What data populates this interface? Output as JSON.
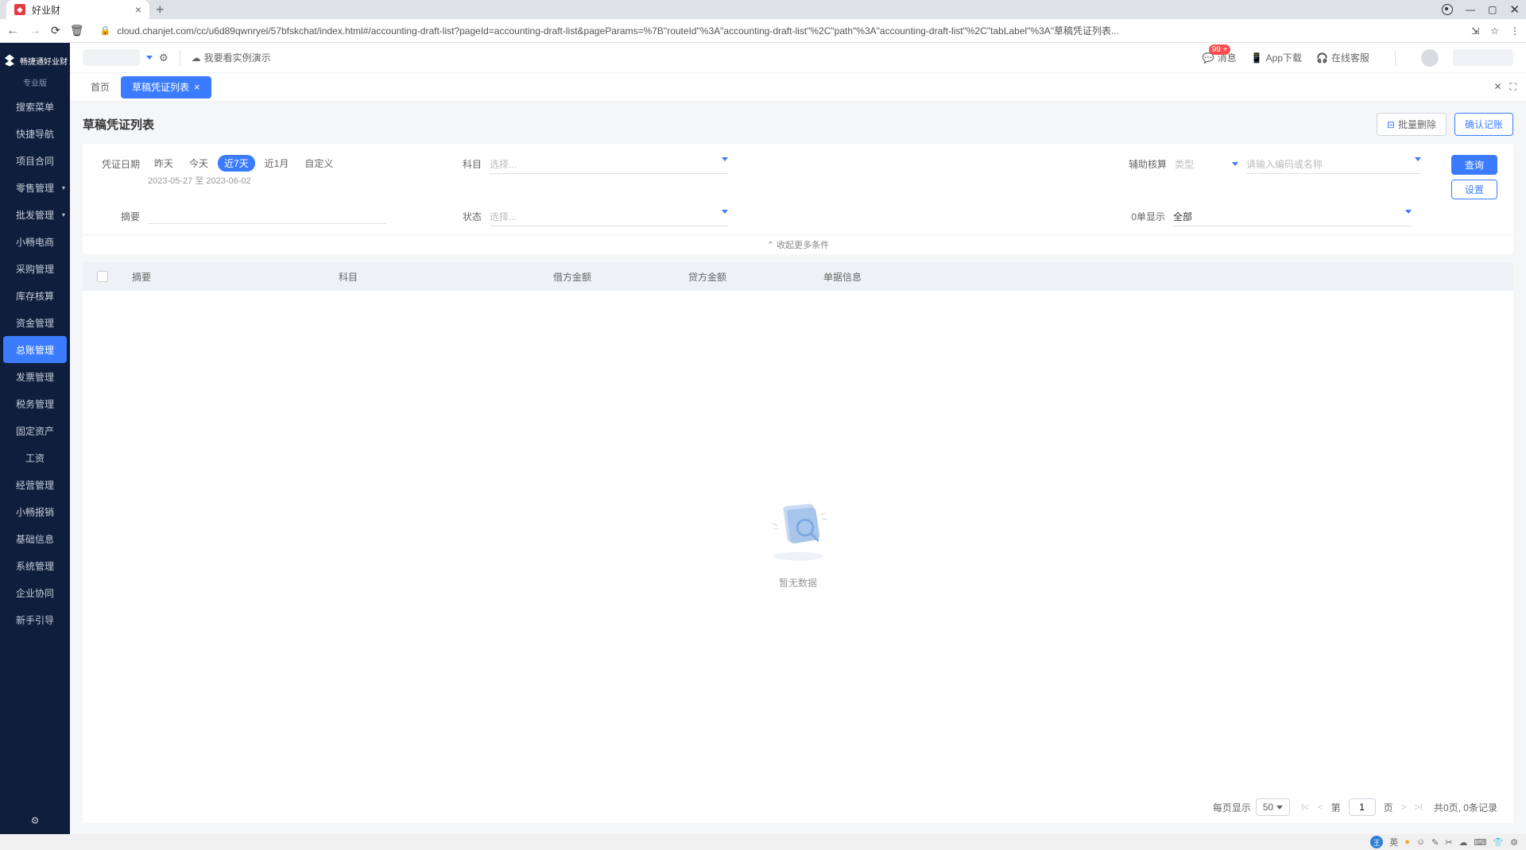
{
  "browser": {
    "tab_title": "好业财",
    "url": "cloud.chanjet.com/cc/u6d89qwnryel/57bfskchat/index.html#/accounting-draft-list?pageId=accounting-draft-list&pageParams=%7B\"routeId\"%3A\"accounting-draft-list\"%2C\"path\"%3A\"accounting-draft-list\"%2C\"tabLabel\"%3A\"草稿凭证列表..."
  },
  "sidebar": {
    "logo_text": "畅捷通好业财",
    "sub_text": "专业版",
    "items": [
      "搜索菜单",
      "快捷导航",
      "项目合同",
      "零售管理",
      "批发管理",
      "小畅电商",
      "采购管理",
      "库存核算",
      "资金管理",
      "总账管理",
      "发票管理",
      "税务管理",
      "固定资产",
      "工资",
      "经营管理",
      "小畅报销",
      "基础信息",
      "系统管理",
      "企业协同",
      "新手引导"
    ],
    "expandable": [
      3,
      4
    ]
  },
  "topbar": {
    "demo": "我要看实例演示",
    "msg": "消息",
    "badge": "99 +",
    "download": "App下载",
    "service": "在线客服"
  },
  "tabs": {
    "home": "首页",
    "active": "草稿凭证列表"
  },
  "page": {
    "title": "草稿凭证列表",
    "batch_delete": "批量删除",
    "confirm": "确认记账"
  },
  "filters": {
    "date_label": "凭证日期",
    "date_pills": [
      "昨天",
      "今天",
      "近7天",
      "近1月",
      "自定义"
    ],
    "date_range": "2023-05-27 至 2023-06-02",
    "subject_label": "科目",
    "subject_placeholder": "选择...",
    "aux_label": "辅助核算",
    "aux_type_placeholder": "类型",
    "aux_code_placeholder": "请输入编码或名称",
    "summary_label": "摘要",
    "status_label": "状态",
    "status_placeholder": "选择...",
    "zero_label": "0单显示",
    "zero_value": "全部",
    "search_btn": "查询",
    "settings_btn": "设置",
    "collapse": "收起更多条件"
  },
  "table": {
    "columns": [
      "摘要",
      "科目",
      "借方金额",
      "贷方金额",
      "单据信息"
    ],
    "widths": [
      260,
      270,
      170,
      170,
      400
    ],
    "empty": "暂无数据"
  },
  "pagination": {
    "per_page_label": "每页显示",
    "per_page_value": "50",
    "page_label_prefix": "第",
    "page_value": "1",
    "page_label_suffix": "页",
    "total": "共0页, 0条记录"
  },
  "ime": {
    "lang": "英"
  }
}
